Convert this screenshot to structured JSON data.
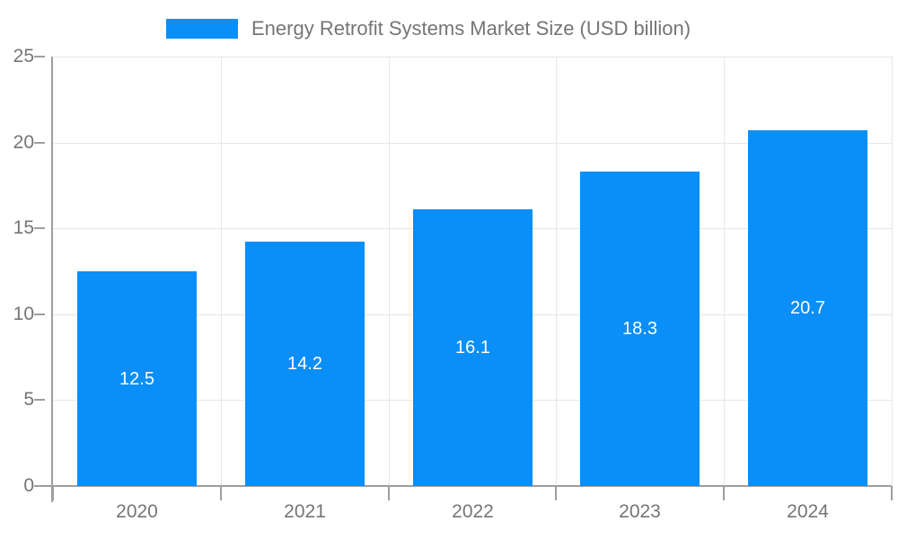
{
  "chart_data": {
    "type": "bar",
    "title": "Energy Retrofit Systems Market Size (USD billion)",
    "categories": [
      "2020",
      "2021",
      "2022",
      "2023",
      "2024"
    ],
    "values": [
      12.5,
      14.2,
      16.1,
      18.3,
      20.7
    ],
    "bar_labels": [
      "12.5",
      "14.2",
      "16.1",
      "18.3",
      "20.7"
    ],
    "ylim": [
      0,
      25
    ],
    "ytick_values": [
      0,
      5,
      10,
      15,
      20,
      25
    ],
    "ytick_labels": [
      "0",
      "5",
      "10",
      "15",
      "20",
      "25"
    ],
    "grid": true,
    "legend_position": "top",
    "bar_label_position": "center",
    "colors": {
      "bar": "#0a8ef8",
      "bar_label_text": "#ffffff",
      "axis_line": "#9e9e9e",
      "gridline": "#e6e6e6",
      "tick_label": "#757575",
      "title_text": "#757575",
      "background": "#ffffff"
    }
  }
}
